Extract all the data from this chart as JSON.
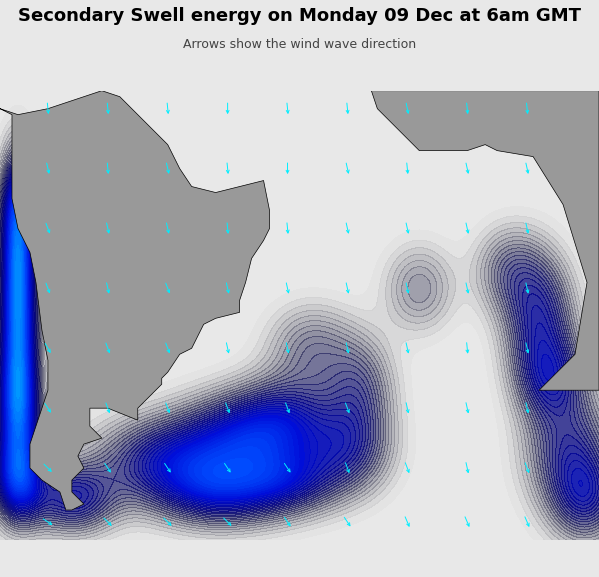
{
  "title": "Secondary Swell energy on Monday 09 Dec at 6am GMT",
  "subtitle": "Arrows show the wind wave direction",
  "title_fontsize": 13,
  "subtitle_fontsize": 9,
  "bg_color": "#000010",
  "land_color": "#999999",
  "header_bg": "#e8e8e8",
  "arrow_color": "#00eeff",
  "figsize": [
    5.99,
    5.77
  ],
  "dpi": 100,
  "lon_min": -80,
  "lon_max": 20,
  "lat_min": -60,
  "lat_max": 15,
  "energy_blobs": [
    {
      "lon": -77,
      "lat": -5,
      "sx": 2.0,
      "sy": 7,
      "amp": 1.4
    },
    {
      "lon": -77,
      "lat": -17,
      "sx": 2.0,
      "sy": 7,
      "amp": 1.2
    },
    {
      "lon": -77,
      "lat": -29,
      "sx": 2.2,
      "sy": 8,
      "amp": 1.3
    },
    {
      "lon": -77,
      "lat": -40,
      "sx": 2.5,
      "sy": 7,
      "amp": 1.2
    },
    {
      "lon": -77,
      "lat": -50,
      "sx": 3.0,
      "sy": 5,
      "amp": 1.1
    },
    {
      "lon": -68,
      "lat": -53,
      "sx": 5,
      "sy": 4,
      "amp": 0.9
    },
    {
      "lon": -52,
      "lat": -47,
      "sx": 8,
      "sy": 5,
      "amp": 0.95
    },
    {
      "lon": -40,
      "lat": -43,
      "sx": 7,
      "sy": 5,
      "amp": 0.9
    },
    {
      "lon": -32,
      "lat": -40,
      "sx": 6,
      "sy": 5,
      "amp": 0.75
    },
    {
      "lon": -43,
      "lat": -52,
      "sx": 7,
      "sy": 4,
      "amp": 0.85
    },
    {
      "lon": -32,
      "lat": -50,
      "sx": 6,
      "sy": 4,
      "amp": 0.75
    },
    {
      "lon": -22,
      "lat": -45,
      "sx": 5,
      "sy": 5,
      "amp": 0.65
    },
    {
      "lon": -20,
      "lat": -35,
      "sx": 4,
      "sy": 6,
      "amp": 0.55
    },
    {
      "lon": 10,
      "lat": -23,
      "sx": 4,
      "sy": 7,
      "amp": 0.85
    },
    {
      "lon": 12,
      "lat": -33,
      "sx": 4,
      "sy": 5,
      "amp": 0.7
    },
    {
      "lon": 5,
      "lat": -15,
      "sx": 4,
      "sy": 5,
      "amp": 0.45
    },
    {
      "lon": -10,
      "lat": -18,
      "sx": 4,
      "sy": 5,
      "amp": 0.4
    },
    {
      "lon": 15,
      "lat": -45,
      "sx": 5,
      "sy": 7,
      "amp": 0.75
    },
    {
      "lon": 18,
      "lat": -53,
      "sx": 4,
      "sy": 5,
      "amp": 0.7
    },
    {
      "lon": -28,
      "lat": -28,
      "sx": 5,
      "sy": 5,
      "amp": 0.45
    }
  ],
  "arrows": [
    [
      -72,
      12,
      0.1,
      -1.0
    ],
    [
      -62,
      12,
      0.1,
      -1.0
    ],
    [
      -52,
      12,
      0.1,
      -1.0
    ],
    [
      -42,
      12,
      0.0,
      -1.0
    ],
    [
      -32,
      12,
      0.1,
      -1.0
    ],
    [
      -22,
      12,
      0.1,
      -1.0
    ],
    [
      -12,
      12,
      0.2,
      -1.0
    ],
    [
      -2,
      12,
      0.1,
      -1.0
    ],
    [
      8,
      12,
      0.1,
      -1.0
    ],
    [
      -72,
      2,
      0.2,
      -0.9
    ],
    [
      -62,
      2,
      0.1,
      -1.0
    ],
    [
      -52,
      2,
      0.2,
      -0.9
    ],
    [
      -42,
      2,
      0.1,
      -1.0
    ],
    [
      -32,
      2,
      0.0,
      -1.0
    ],
    [
      -22,
      2,
      0.2,
      -0.9
    ],
    [
      -12,
      2,
      0.1,
      -1.0
    ],
    [
      -2,
      2,
      0.2,
      -0.9
    ],
    [
      8,
      2,
      0.2,
      -0.9
    ],
    [
      -72,
      -8,
      0.3,
      -0.8
    ],
    [
      -62,
      -8,
      0.2,
      -0.9
    ],
    [
      -52,
      -8,
      0.2,
      -0.9
    ],
    [
      -42,
      -8,
      0.1,
      -1.0
    ],
    [
      -32,
      -8,
      0.1,
      -1.0
    ],
    [
      -22,
      -8,
      0.2,
      -0.9
    ],
    [
      -12,
      -8,
      0.2,
      -0.9
    ],
    [
      -2,
      -8,
      0.2,
      -0.9
    ],
    [
      8,
      -8,
      0.2,
      -0.9
    ],
    [
      -72,
      -18,
      0.3,
      -0.8
    ],
    [
      -62,
      -18,
      0.2,
      -0.9
    ],
    [
      -52,
      -18,
      0.3,
      -0.8
    ],
    [
      -42,
      -18,
      0.2,
      -0.9
    ],
    [
      -32,
      -18,
      0.2,
      -0.9
    ],
    [
      -22,
      -18,
      0.2,
      -0.9
    ],
    [
      -12,
      -18,
      0.2,
      -0.9
    ],
    [
      -2,
      -18,
      0.2,
      -0.9
    ],
    [
      8,
      -18,
      0.2,
      -0.9
    ],
    [
      -72,
      -28,
      0.4,
      -0.7
    ],
    [
      -62,
      -28,
      0.3,
      -0.8
    ],
    [
      -52,
      -28,
      0.3,
      -0.8
    ],
    [
      -42,
      -28,
      0.2,
      -0.9
    ],
    [
      -32,
      -28,
      0.2,
      -0.9
    ],
    [
      -22,
      -28,
      0.2,
      -0.9
    ],
    [
      -12,
      -28,
      0.2,
      -0.9
    ],
    [
      -2,
      -28,
      0.1,
      -1.0
    ],
    [
      8,
      -28,
      0.2,
      -0.9
    ],
    [
      -72,
      -38,
      0.4,
      -0.6
    ],
    [
      -62,
      -38,
      0.3,
      -0.8
    ],
    [
      -52,
      -38,
      0.3,
      -0.8
    ],
    [
      -42,
      -38,
      0.3,
      -0.8
    ],
    [
      -32,
      -38,
      0.3,
      -0.8
    ],
    [
      -22,
      -38,
      0.3,
      -0.8
    ],
    [
      -12,
      -38,
      0.2,
      -0.9
    ],
    [
      -2,
      -38,
      0.2,
      -0.9
    ],
    [
      8,
      -38,
      0.2,
      -0.9
    ],
    [
      -72,
      -48,
      0.5,
      -0.5
    ],
    [
      -62,
      -48,
      0.4,
      -0.6
    ],
    [
      -52,
      -48,
      0.4,
      -0.6
    ],
    [
      -42,
      -48,
      0.4,
      -0.6
    ],
    [
      -32,
      -48,
      0.4,
      -0.6
    ],
    [
      -22,
      -48,
      0.3,
      -0.8
    ],
    [
      -12,
      -48,
      0.3,
      -0.8
    ],
    [
      -2,
      -48,
      0.2,
      -0.9
    ],
    [
      8,
      -48,
      0.3,
      -0.8
    ],
    [
      -72,
      -57,
      0.6,
      -0.4
    ],
    [
      -62,
      -57,
      0.5,
      -0.5
    ],
    [
      -52,
      -57,
      0.5,
      -0.5
    ],
    [
      -42,
      -57,
      0.5,
      -0.5
    ],
    [
      -32,
      -57,
      0.4,
      -0.6
    ],
    [
      -22,
      -57,
      0.4,
      -0.6
    ],
    [
      -12,
      -57,
      0.3,
      -0.7
    ],
    [
      -2,
      -57,
      0.3,
      -0.7
    ],
    [
      8,
      -57,
      0.3,
      -0.7
    ]
  ]
}
